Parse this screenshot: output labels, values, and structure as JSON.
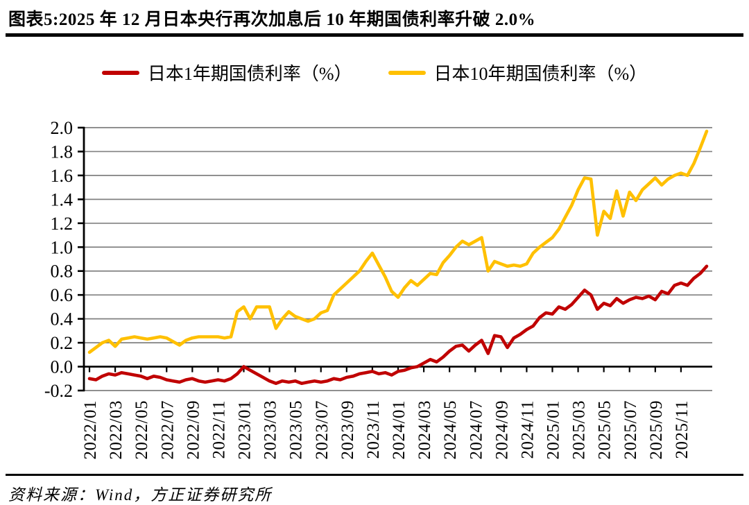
{
  "header": {
    "title": "图表5:2025 年 12 月日本央行再次加息后 10 年期国债利率升破 2.0%"
  },
  "footer": {
    "source": "资料来源：Wind，方正证券研究所"
  },
  "chart_data": {
    "type": "line",
    "title": "",
    "xlabel": "",
    "ylabel": "",
    "grid": true,
    "grid_color": "#808080",
    "axis_color": "#000000",
    "legend_position": "top",
    "ylim": [
      -0.2,
      2.0
    ],
    "y_tick_step": 0.2,
    "y_tick_labels": [
      "2.0",
      "1.8",
      "1.6",
      "1.4",
      "1.2",
      "1.0",
      "0.8",
      "0.6",
      "0.4",
      "0.2",
      "0.0",
      "-0.2"
    ],
    "x_tick_labels": [
      "2022/01",
      "2022/03",
      "2022/05",
      "2022/07",
      "2022/09",
      "2022/11",
      "2023/01",
      "2023/03",
      "2023/05",
      "2023/07",
      "2023/09",
      "2023/11",
      "2024/01",
      "2024/03",
      "2024/05",
      "2024/07",
      "2024/09",
      "2024/11",
      "2025/01",
      "2025/03",
      "2025/05",
      "2025/07",
      "2025/09",
      "2025/11"
    ],
    "x_start": "2022/01",
    "x_end": "2025/12",
    "points_per_month": 2,
    "label_every_months": 2,
    "series": [
      {
        "name": "日本1年期国债利率（%）",
        "color": "#C00000",
        "values": [
          -0.1,
          -0.11,
          -0.08,
          -0.06,
          -0.07,
          -0.05,
          -0.06,
          -0.07,
          -0.08,
          -0.1,
          -0.08,
          -0.09,
          -0.11,
          -0.12,
          -0.13,
          -0.11,
          -0.1,
          -0.12,
          -0.13,
          -0.12,
          -0.11,
          -0.12,
          -0.1,
          -0.06,
          0.0,
          -0.03,
          -0.06,
          -0.09,
          -0.12,
          -0.14,
          -0.12,
          -0.13,
          -0.12,
          -0.14,
          -0.13,
          -0.12,
          -0.13,
          -0.12,
          -0.1,
          -0.11,
          -0.09,
          -0.08,
          -0.06,
          -0.05,
          -0.04,
          -0.06,
          -0.05,
          -0.07,
          -0.04,
          -0.03,
          -0.01,
          0.0,
          0.03,
          0.06,
          0.04,
          0.08,
          0.13,
          0.17,
          0.18,
          0.13,
          0.18,
          0.22,
          0.11,
          0.26,
          0.25,
          0.16,
          0.24,
          0.27,
          0.31,
          0.34,
          0.41,
          0.45,
          0.44,
          0.5,
          0.48,
          0.52,
          0.58,
          0.64,
          0.6,
          0.48,
          0.53,
          0.51,
          0.57,
          0.53,
          0.56,
          0.58,
          0.57,
          0.59,
          0.56,
          0.63,
          0.61,
          0.68,
          0.7,
          0.68,
          0.74,
          0.78,
          0.84
        ]
      },
      {
        "name": "日本10年期国债利率（%）",
        "color": "#FFC000",
        "values": [
          0.12,
          0.16,
          0.2,
          0.22,
          0.17,
          0.23,
          0.24,
          0.25,
          0.24,
          0.23,
          0.24,
          0.25,
          0.24,
          0.21,
          0.18,
          0.22,
          0.24,
          0.25,
          0.25,
          0.25,
          0.25,
          0.24,
          0.25,
          0.46,
          0.5,
          0.4,
          0.5,
          0.5,
          0.5,
          0.32,
          0.4,
          0.46,
          0.42,
          0.4,
          0.38,
          0.4,
          0.45,
          0.47,
          0.6,
          0.65,
          0.7,
          0.75,
          0.8,
          0.88,
          0.95,
          0.85,
          0.75,
          0.63,
          0.58,
          0.66,
          0.72,
          0.68,
          0.73,
          0.78,
          0.77,
          0.87,
          0.93,
          1.0,
          1.05,
          1.02,
          1.05,
          1.08,
          0.8,
          0.88,
          0.86,
          0.84,
          0.85,
          0.84,
          0.86,
          0.95,
          1.0,
          1.04,
          1.08,
          1.15,
          1.25,
          1.35,
          1.48,
          1.58,
          1.57,
          1.1,
          1.3,
          1.24,
          1.47,
          1.26,
          1.46,
          1.39,
          1.48,
          1.53,
          1.58,
          1.52,
          1.57,
          1.6,
          1.62,
          1.6,
          1.7,
          1.83,
          1.97
        ]
      }
    ]
  }
}
